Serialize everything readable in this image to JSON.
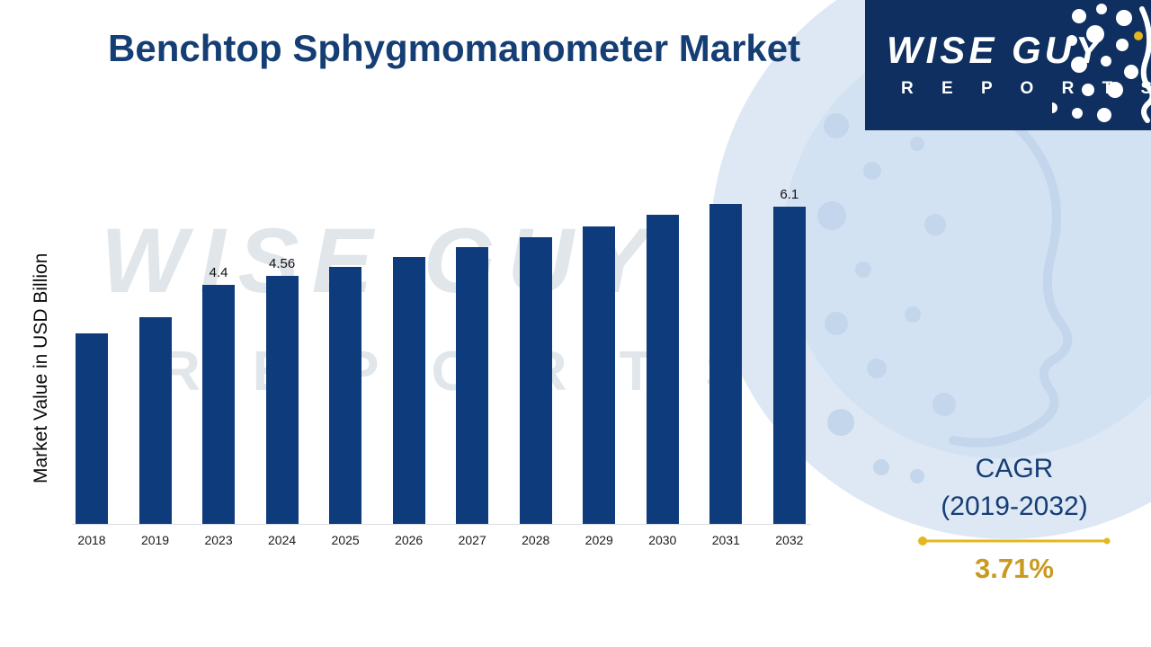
{
  "title": "Benchtop Sphygmomanometer Market",
  "logo": {
    "line1": "WISE GUY",
    "line2": "R E P O R T S"
  },
  "watermark": {
    "line1": "WISE GUY",
    "line2": "REPORTS"
  },
  "cagr": {
    "label": "CAGR",
    "range": "(2019-2032)",
    "value": "3.71%"
  },
  "colors": {
    "bar": "#0d3b7c",
    "navy": "#153e75",
    "logo_navy": "#0e2f5f",
    "gold": "#c99a1f",
    "face_watermark": "#dde8f4"
  },
  "chart_data": {
    "type": "bar",
    "title": "Benchtop Sphygmomanometer Market",
    "categories": [
      "2018",
      "2019",
      "2023",
      "2024",
      "2025",
      "2026",
      "2027",
      "2028",
      "2029",
      "2030",
      "2031",
      "2032"
    ],
    "values": [
      3.5,
      3.8,
      4.4,
      4.56,
      4.73,
      4.91,
      5.09,
      5.28,
      5.47,
      5.68,
      5.89,
      6.1
    ],
    "point_labels": [
      "",
      "",
      "4.4",
      "4.56",
      "",
      "",
      "",
      "",
      "",
      "",
      "",
      "6.1"
    ],
    "xlabel": "",
    "ylabel": "Market Value in USD Billion",
    "ylim": [
      0,
      6.2
    ],
    "bar_color": "#0d3b7c",
    "grid": false,
    "legend": false
  }
}
